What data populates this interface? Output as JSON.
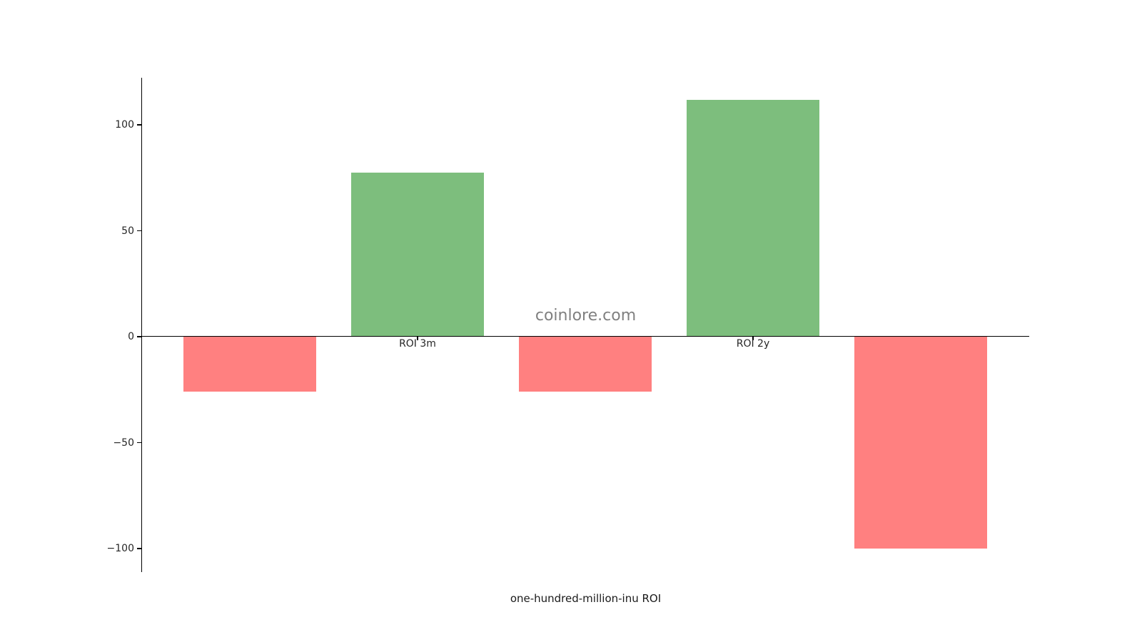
{
  "chart_data": {
    "type": "bar",
    "title": "one-hundred-million-inu ROI",
    "watermark": "coinlore.com",
    "categories": [
      "",
      "ROI 3m",
      "",
      "ROI 2y",
      ""
    ],
    "values": [
      -25.8,
      77.4,
      -25.8,
      111.8,
      -100
    ],
    "bar_colors": [
      "#ff8080",
      "#7dbe7d",
      "#ff8080",
      "#7dbe7d",
      "#ff8080"
    ],
    "positive_color": "#7dbe7d",
    "negative_color": "#ff8080",
    "yticks": [
      100,
      50,
      0,
      -50,
      -100
    ],
    "ylim": [
      -111,
      122
    ],
    "xlabel": "",
    "ylabel": "",
    "grid": false,
    "legend_position": "none",
    "axis_color": "#000000",
    "tick_label_color": "#262626",
    "watermark_color": "#808080",
    "title_color": "#1a1a1a"
  }
}
